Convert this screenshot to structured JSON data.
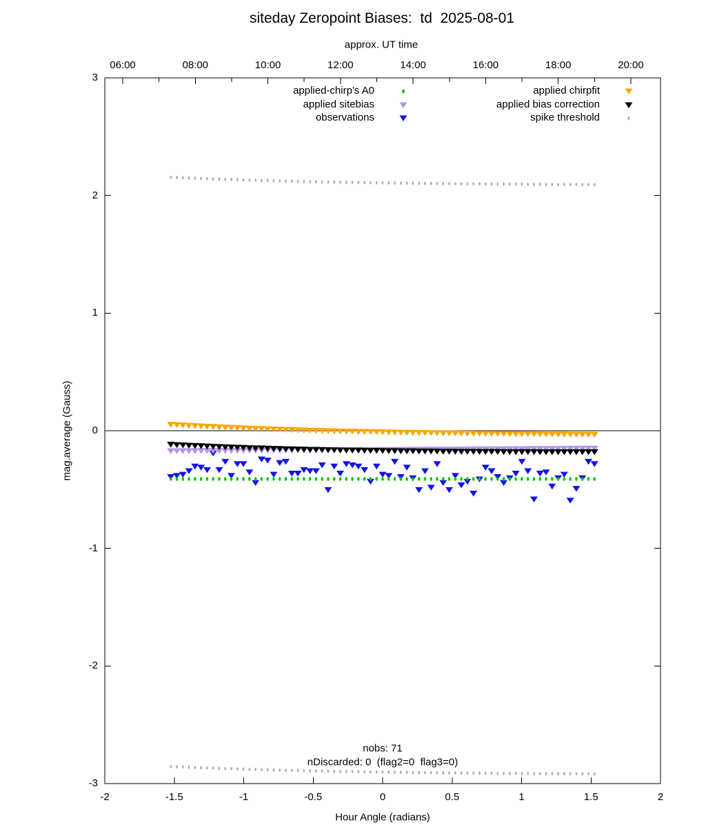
{
  "title": "siteday Zeropoint Biases:  td  2025-08-01",
  "axes": {
    "top": {
      "label": "approx. UT time",
      "ticks": [
        {
          "label": "06:00",
          "hour": 6
        },
        {
          "label": "08:00",
          "hour": 8
        },
        {
          "label": "10:00",
          "hour": 10
        },
        {
          "label": "12:00",
          "hour": 12
        },
        {
          "label": "14:00",
          "hour": 14
        },
        {
          "label": "16:00",
          "hour": 16
        },
        {
          "label": "18:00",
          "hour": 18
        },
        {
          "label": "20:00",
          "hour": 20
        }
      ],
      "minor_hours": [
        7,
        9,
        11,
        13,
        15,
        17,
        19
      ]
    },
    "bottom": {
      "label": "Hour Angle (radians)",
      "ticks": [
        {
          "label": "-2",
          "value": -2
        },
        {
          "label": "-1.5",
          "value": -1.5
        },
        {
          "label": "-1",
          "value": -1
        },
        {
          "label": "-0.5",
          "value": -0.5
        },
        {
          "label": "0",
          "value": 0
        },
        {
          "label": "0.5",
          "value": 0.5
        },
        {
          "label": "1",
          "value": 1
        },
        {
          "label": "1.5",
          "value": 1.5
        },
        {
          "label": "2",
          "value": 2
        }
      ]
    },
    "left": {
      "label": "mag.average (Gauss)",
      "ticks": [
        {
          "label": "3",
          "value": 3
        },
        {
          "label": "2",
          "value": 2
        },
        {
          "label": "1",
          "value": 1
        },
        {
          "label": "0",
          "value": 0
        },
        {
          "label": "-1",
          "value": -1
        },
        {
          "label": "-2",
          "value": -2
        },
        {
          "label": "-3",
          "value": -3
        }
      ]
    }
  },
  "annotations": {
    "nobs": "nobs: 71",
    "ndiscarded": "nDiscarded: 0  (flag2=0  flag3=0)"
  },
  "legend": {
    "left_entries": [
      {
        "label": "applied-chirp's A0",
        "marker": "dot",
        "color": "#00c800"
      },
      {
        "label": "applied sitebias",
        "marker": "triangle",
        "color": "#b294e6"
      },
      {
        "label": "observations",
        "marker": "triangle",
        "color": "#1212ee"
      }
    ],
    "right_entries": [
      {
        "label": "applied chirpfit",
        "marker": "triangle",
        "color": "#ffa500"
      },
      {
        "label": "applied bias correction",
        "marker": "triangle",
        "color": "#000000"
      },
      {
        "label": "spike threshold",
        "marker": "dot-small",
        "color": "#b0b0b0"
      }
    ]
  },
  "colors": {
    "green": "#00c800",
    "purple": "#b294e6",
    "blue": "#1212ee",
    "orange": "#ffa500",
    "black": "#000000",
    "gray": "#b0b0b0",
    "axis": "#000000"
  },
  "chart_data": {
    "type": "scatter",
    "title": "siteday Zeropoint Biases:  td  2025-08-01",
    "xlabel": "Hour Angle (radians)",
    "x2label": "approx. UT time",
    "ylabel": "mag.average (Gauss)",
    "xlim": [
      -2,
      2
    ],
    "ylim": [
      -3,
      3
    ],
    "x2_hours_range": [
      5.51,
      20.81
    ],
    "grid": false,
    "zero_line": 0,
    "legend_position": "top-inside-two-columns",
    "x": {
      "start": -1.525,
      "step": 0.043571,
      "count": 71
    },
    "series": [
      {
        "id": "spike-threshold-upper",
        "name": "spike threshold",
        "marker": "dot-small",
        "color": "#b0b0b0",
        "y": [
          2.155,
          2.153,
          2.151,
          2.149,
          2.147,
          2.145,
          2.143,
          2.141,
          2.139,
          2.137,
          2.136,
          2.134,
          2.133,
          2.131,
          2.13,
          2.128,
          2.127,
          2.125,
          2.124,
          2.123,
          2.122,
          2.121,
          2.119,
          2.118,
          2.117,
          2.116,
          2.115,
          2.114,
          2.113,
          2.112,
          2.112,
          2.111,
          2.11,
          2.109,
          2.108,
          2.108,
          2.107,
          2.106,
          2.106,
          2.105,
          2.104,
          2.104,
          2.103,
          2.102,
          2.102,
          2.101,
          2.101,
          2.1,
          2.1,
          2.099,
          2.099,
          2.099,
          2.098,
          2.098,
          2.097,
          2.097,
          2.096,
          2.096,
          2.096,
          2.095,
          2.095,
          2.095,
          2.094,
          2.094,
          2.094,
          2.094,
          2.093,
          2.093,
          2.093,
          2.093,
          2.092
        ]
      },
      {
        "id": "spike-threshold-lower",
        "name": "spike threshold",
        "marker": "dot-small",
        "color": "#b0b0b0",
        "y": [
          -2.855,
          -2.857,
          -2.859,
          -2.861,
          -2.863,
          -2.865,
          -2.867,
          -2.869,
          -2.871,
          -2.873,
          -2.874,
          -2.876,
          -2.877,
          -2.879,
          -2.88,
          -2.882,
          -2.883,
          -2.885,
          -2.886,
          -2.887,
          -2.888,
          -2.889,
          -2.891,
          -2.892,
          -2.893,
          -2.894,
          -2.895,
          -2.896,
          -2.897,
          -2.898,
          -2.898,
          -2.899,
          -2.9,
          -2.901,
          -2.902,
          -2.902,
          -2.903,
          -2.904,
          -2.904,
          -2.905,
          -2.906,
          -2.906,
          -2.907,
          -2.908,
          -2.908,
          -2.909,
          -2.909,
          -2.91,
          -2.91,
          -2.911,
          -2.911,
          -2.911,
          -2.912,
          -2.912,
          -2.913,
          -2.913,
          -2.914,
          -2.914,
          -2.914,
          -2.915,
          -2.915,
          -2.915,
          -2.916,
          -2.916,
          -2.916,
          -2.916,
          -2.917,
          -2.917,
          -2.917,
          -2.917,
          -2.918
        ]
      },
      {
        "id": "observations",
        "name": "observations",
        "marker": "triangle",
        "color": "#1212ee",
        "y": [
          -0.39,
          -0.38,
          -0.37,
          -0.34,
          -0.3,
          -0.31,
          -0.33,
          -0.19,
          -0.33,
          -0.26,
          -0.38,
          -0.28,
          -0.28,
          -0.35,
          -0.44,
          -0.24,
          -0.25,
          -0.37,
          -0.27,
          -0.26,
          -0.36,
          -0.36,
          -0.33,
          -0.34,
          -0.34,
          -0.29,
          -0.5,
          -0.3,
          -0.36,
          -0.28,
          -0.29,
          -0.3,
          -0.33,
          -0.43,
          -0.3,
          -0.37,
          -0.38,
          -0.26,
          -0.39,
          -0.31,
          -0.4,
          -0.5,
          -0.34,
          -0.48,
          -0.28,
          -0.44,
          -0.5,
          -0.38,
          -0.46,
          -0.43,
          -0.53,
          -0.41,
          -0.31,
          -0.34,
          -0.39,
          -0.44,
          -0.4,
          -0.36,
          -0.26,
          -0.34,
          -0.58,
          -0.36,
          -0.35,
          -0.47,
          -0.4,
          -0.37,
          -0.59,
          -0.49,
          -0.4,
          -0.26,
          -0.28
        ]
      },
      {
        "id": "applied-chirps-a0",
        "name": "applied-chirp's A0",
        "marker": "dot",
        "color": "#00c800",
        "y_const": -0.41
      },
      {
        "id": "applied-sitebias",
        "name": "applied sitebias",
        "marker": "triangle",
        "color": "#b294e6",
        "y": [
          -0.17,
          -0.17,
          -0.169,
          -0.169,
          -0.169,
          -0.168,
          -0.168,
          -0.168,
          -0.167,
          -0.167,
          -0.167,
          -0.167,
          -0.166,
          -0.166,
          -0.166,
          -0.165,
          -0.165,
          -0.165,
          -0.164,
          -0.164,
          -0.164,
          -0.163,
          -0.163,
          -0.163,
          -0.162,
          -0.162,
          -0.162,
          -0.162,
          -0.161,
          -0.161,
          -0.161,
          -0.16,
          -0.16,
          -0.16,
          -0.159,
          -0.159,
          -0.159,
          -0.158,
          -0.158,
          -0.158,
          -0.157,
          -0.157,
          -0.157,
          -0.156,
          -0.156,
          -0.156,
          -0.156,
          -0.155,
          -0.155,
          -0.155,
          -0.154,
          -0.154,
          -0.154,
          -0.153,
          -0.153,
          -0.153,
          -0.152,
          -0.152,
          -0.152,
          -0.151,
          -0.151,
          -0.151,
          -0.151,
          -0.15,
          -0.15,
          -0.15,
          -0.149,
          -0.149,
          -0.149,
          -0.148,
          -0.148
        ]
      },
      {
        "id": "applied-bias-correction",
        "name": "applied bias correction",
        "marker": "triangle",
        "color": "#000000",
        "y": [
          -0.115,
          -0.118,
          -0.12,
          -0.123,
          -0.125,
          -0.127,
          -0.13,
          -0.132,
          -0.134,
          -0.136,
          -0.138,
          -0.14,
          -0.141,
          -0.144,
          -0.146,
          -0.146,
          -0.148,
          -0.15,
          -0.151,
          -0.153,
          -0.154,
          -0.155,
          -0.156,
          -0.158,
          -0.158,
          -0.16,
          -0.161,
          -0.162,
          -0.163,
          -0.164,
          -0.165,
          -0.165,
          -0.166,
          -0.167,
          -0.167,
          -0.168,
          -0.169,
          -0.169,
          -0.17,
          -0.171,
          -0.171,
          -0.172,
          -0.172,
          -0.172,
          -0.173,
          -0.174,
          -0.174,
          -0.174,
          -0.175,
          -0.175,
          -0.175,
          -0.176,
          -0.176,
          -0.176,
          -0.176,
          -0.177,
          -0.177,
          -0.177,
          -0.177,
          -0.177,
          -0.177,
          -0.178,
          -0.178,
          -0.178,
          -0.178,
          -0.178,
          -0.178,
          -0.178,
          -0.178,
          -0.178,
          -0.178
        ]
      },
      {
        "id": "applied-chirpfit",
        "name": "applied chirpfit",
        "marker": "triangle",
        "color": "#ffa500",
        "y": [
          0.055,
          0.052,
          0.049,
          0.046,
          0.044,
          0.041,
          0.038,
          0.036,
          0.033,
          0.031,
          0.029,
          0.027,
          0.025,
          0.022,
          0.02,
          0.019,
          0.017,
          0.015,
          0.013,
          0.011,
          0.01,
          0.008,
          0.007,
          0.005,
          0.004,
          0.002,
          0.001,
          0.0,
          -0.002,
          -0.003,
          -0.004,
          -0.005,
          -0.006,
          -0.007,
          -0.008,
          -0.009,
          -0.01,
          -0.011,
          -0.012,
          -0.013,
          -0.014,
          -0.015,
          -0.015,
          -0.016,
          -0.017,
          -0.018,
          -0.018,
          -0.019,
          -0.02,
          -0.02,
          -0.021,
          -0.022,
          -0.022,
          -0.023,
          -0.023,
          -0.024,
          -0.024,
          -0.025,
          -0.025,
          -0.026,
          -0.026,
          -0.027,
          -0.027,
          -0.028,
          -0.028,
          -0.028,
          -0.029,
          -0.029,
          -0.029,
          -0.03,
          -0.03
        ]
      }
    ]
  }
}
